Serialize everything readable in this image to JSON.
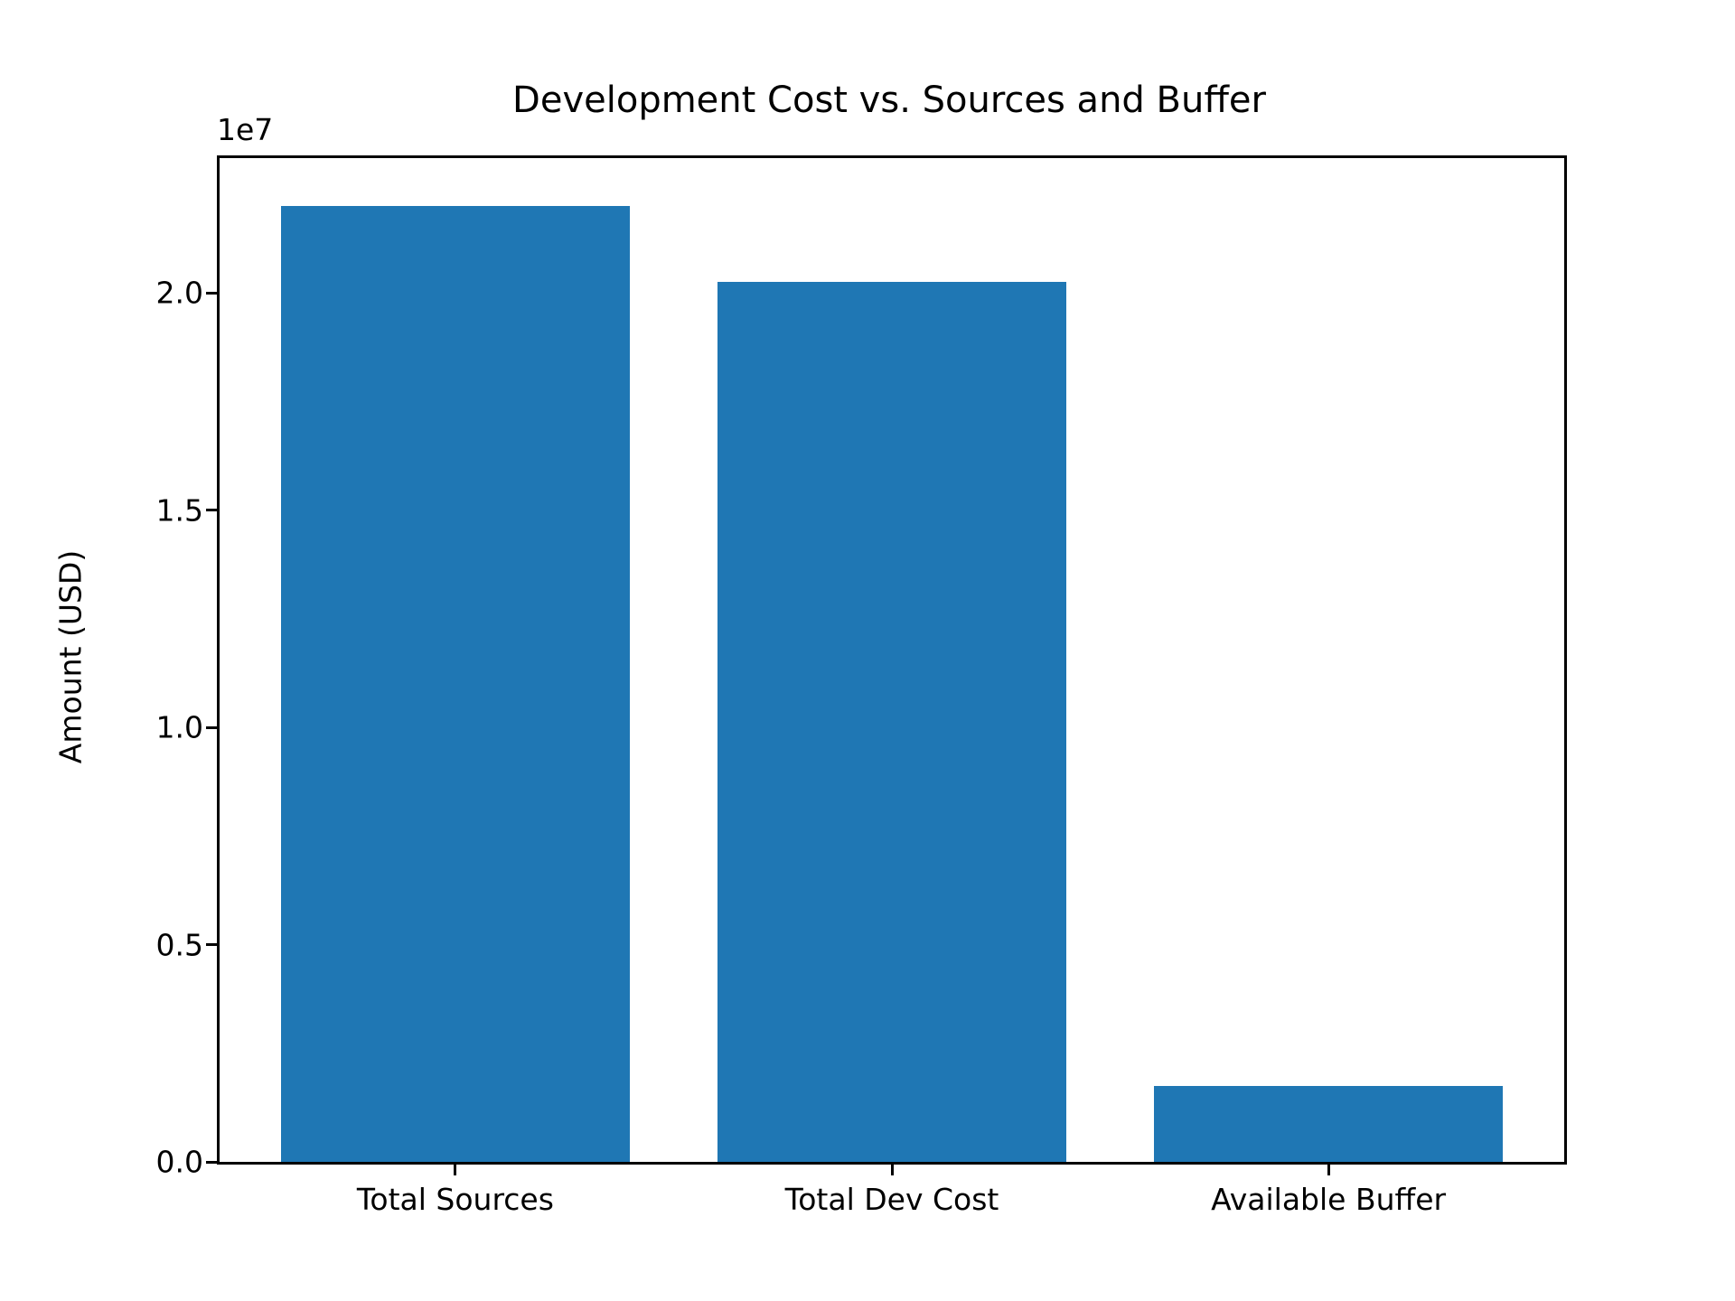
{
  "chart_data": {
    "type": "bar",
    "title": "Development Cost vs. Sources and Buffer",
    "xlabel": "",
    "ylabel": "Amount (USD)",
    "offset_text": "1e7",
    "categories": [
      "Total Sources",
      "Total Dev Cost",
      "Available Buffer"
    ],
    "values": [
      22000000,
      20250000,
      1750000
    ],
    "bar_color": "#1f77b4",
    "yticks": [
      0,
      5000000,
      10000000,
      15000000,
      20000000
    ],
    "ytick_labels": [
      "0.0",
      "0.5",
      "1.0",
      "1.5",
      "2.0"
    ],
    "ylim": [
      0,
      23100000
    ],
    "xlim_units": [
      -0.54,
      2.54
    ],
    "bar_width_units": 0.8,
    "grid": false,
    "legend": null,
    "background_color": "#ffffff",
    "text_color": "#000000"
  }
}
